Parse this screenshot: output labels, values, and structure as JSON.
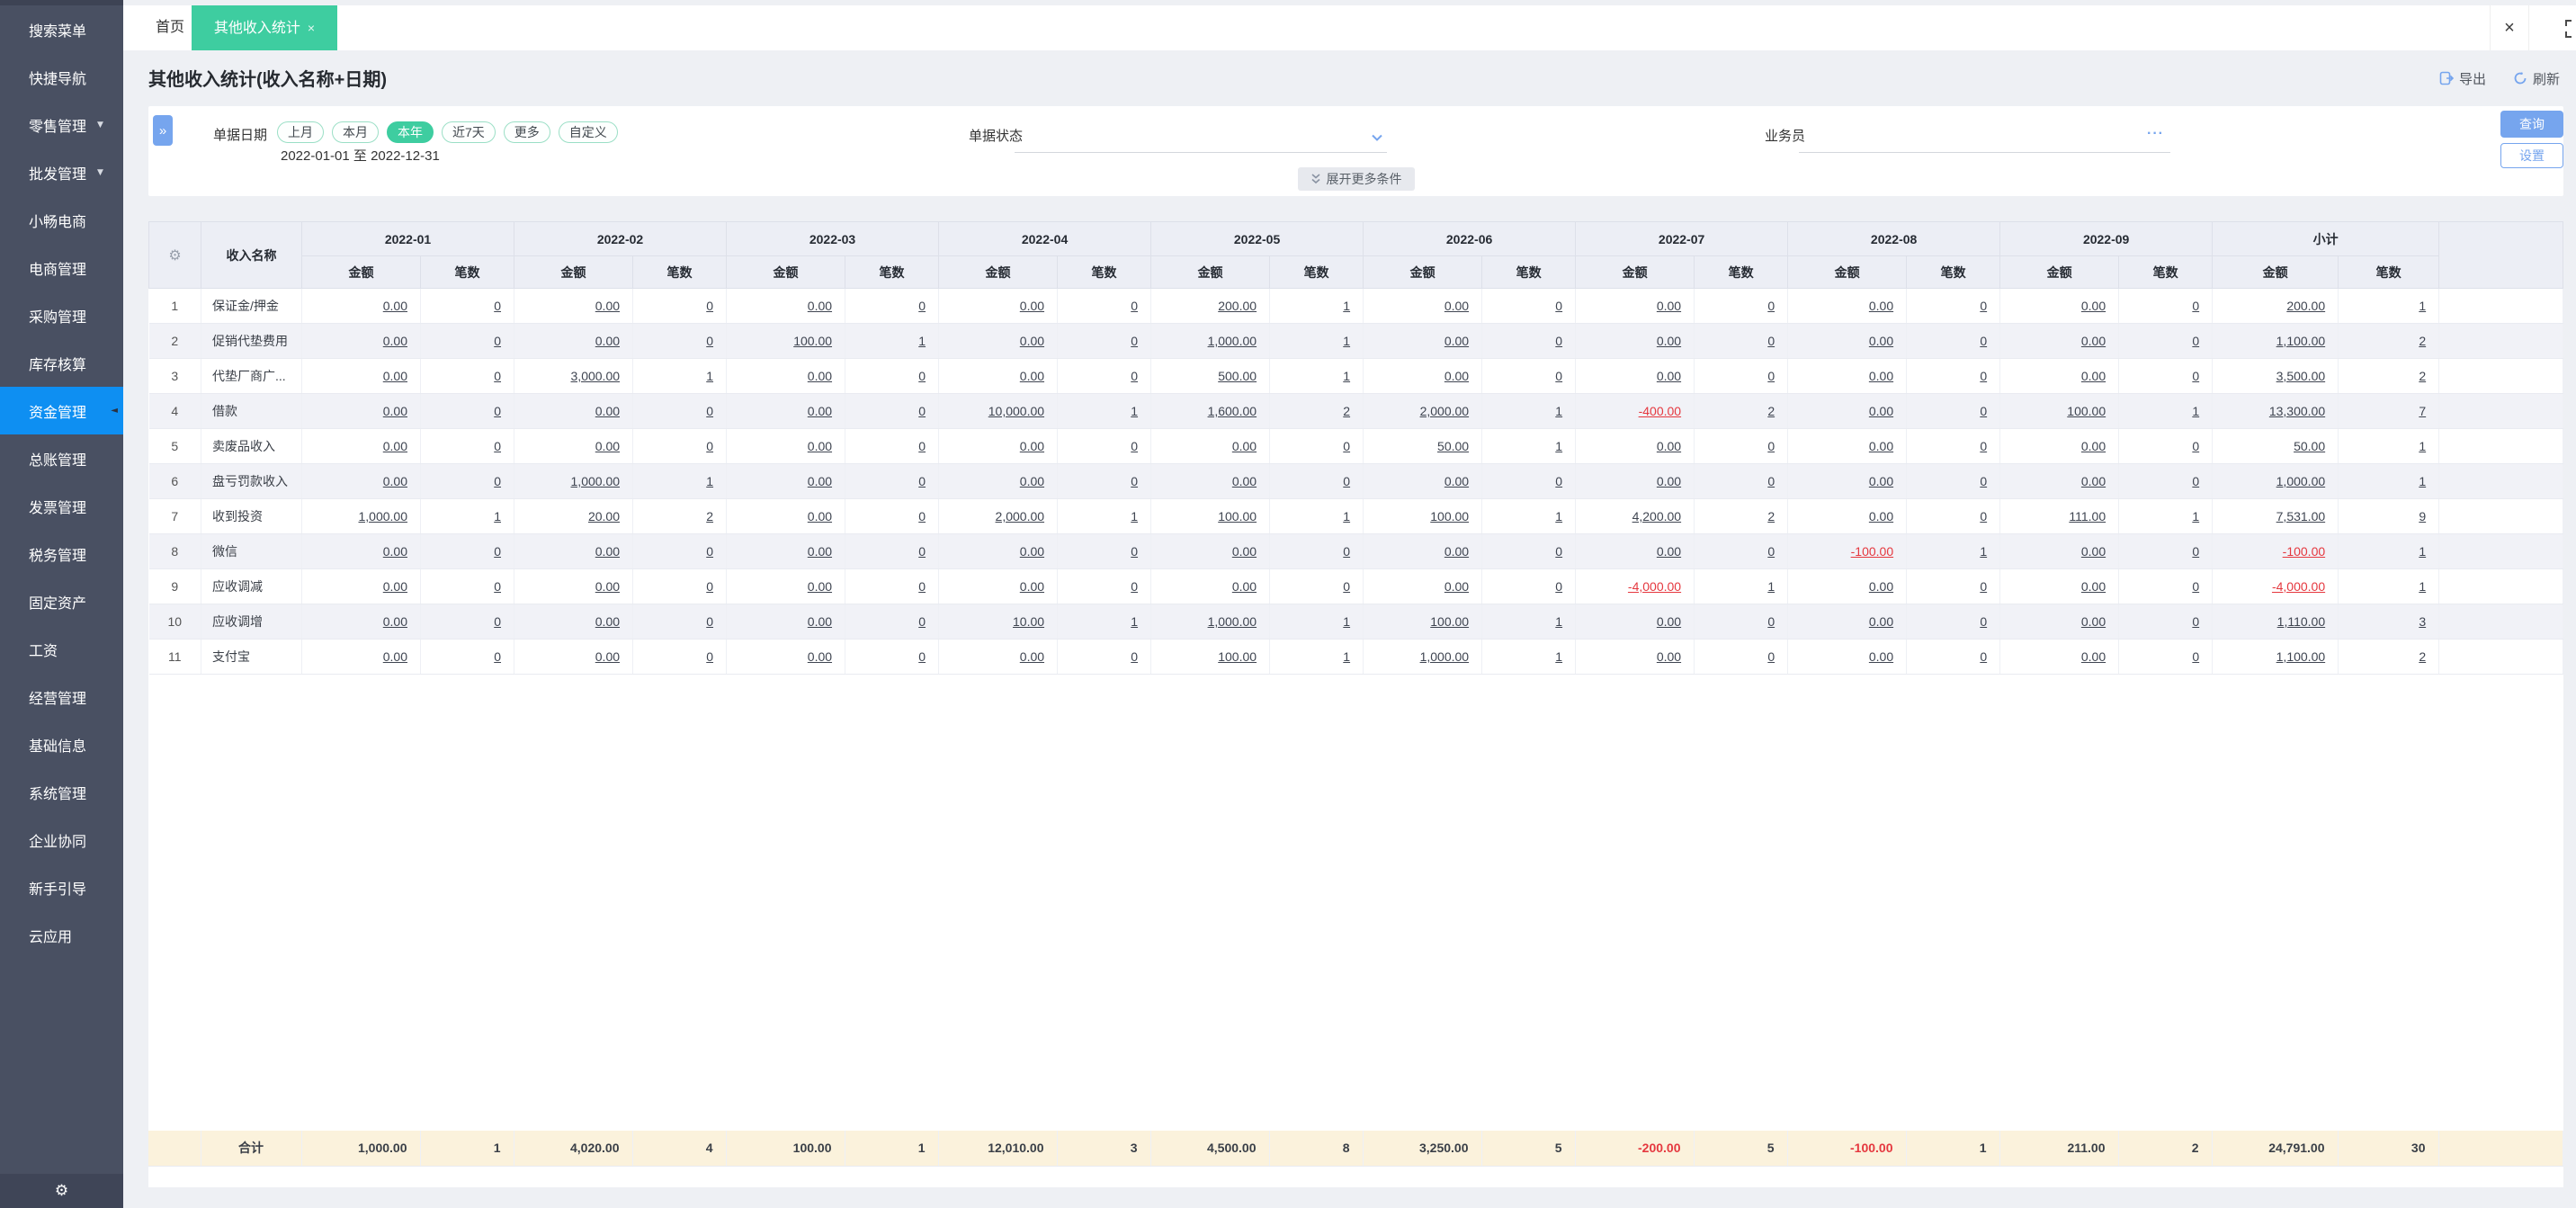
{
  "theme": {
    "accent_green": "#3ecda0",
    "accent_blue": "#76a5ee",
    "sidebar_active_blue": "#0e8ff2",
    "negative_red": "#e5383f",
    "summary_row_bg": "#fbf2dc"
  },
  "icons": {
    "gear_glyph": "⚙",
    "collapse_glyph": "»",
    "close_glyph": "×",
    "caret_glyph": "▼",
    "active_pointer_glyph": "◄",
    "ellipsis_glyph": "···"
  },
  "sidebar": {
    "items": [
      {
        "label": "搜索菜单"
      },
      {
        "label": "快捷导航"
      },
      {
        "label": "零售管理",
        "caret": true
      },
      {
        "label": "批发管理",
        "caret": true
      },
      {
        "label": "小畅电商"
      },
      {
        "label": "电商管理"
      },
      {
        "label": "采购管理"
      },
      {
        "label": "库存核算"
      },
      {
        "label": "资金管理",
        "active": true
      },
      {
        "label": "总账管理"
      },
      {
        "label": "发票管理"
      },
      {
        "label": "税务管理"
      },
      {
        "label": "固定资产"
      },
      {
        "label": "工资"
      },
      {
        "label": "经营管理"
      },
      {
        "label": "基础信息"
      },
      {
        "label": "系统管理"
      },
      {
        "label": "企业协同"
      },
      {
        "label": "新手引导"
      },
      {
        "label": "云应用"
      }
    ]
  },
  "tabs": {
    "home": "首页",
    "active_tab": "其他收入统计"
  },
  "page": {
    "title": "其他收入统计(收入名称+日期)",
    "export_label": "导出",
    "refresh_label": "刷新"
  },
  "filters": {
    "date_label": "单据日期",
    "date_presets": [
      "上月",
      "本月",
      "本年",
      "近7天",
      "更多",
      "自定义"
    ],
    "date_selected": "本年",
    "date_range": "2022-01-01 至 2022-12-31",
    "status_label": "单据状态",
    "status_value": "",
    "salesman_label": "业务员",
    "salesman_value": "",
    "expand_more_label": "展开更多条件",
    "query_label": "查询",
    "settings_label": "设置"
  },
  "table": {
    "name_header": "收入名称",
    "amount_header": "金额",
    "count_header": "笔数",
    "months": [
      "2022-01",
      "2022-02",
      "2022-03",
      "2022-04",
      "2022-05",
      "2022-06",
      "2022-07",
      "2022-08",
      "2022-09",
      "小计"
    ],
    "rows": [
      {
        "index": "1",
        "name": "保证金/押金",
        "values": [
          [
            "0.00",
            "0"
          ],
          [
            "0.00",
            "0"
          ],
          [
            "0.00",
            "0"
          ],
          [
            "0.00",
            "0"
          ],
          [
            "200.00",
            "1"
          ],
          [
            "0.00",
            "0"
          ],
          [
            "0.00",
            "0"
          ],
          [
            "0.00",
            "0"
          ],
          [
            "0.00",
            "0"
          ],
          [
            "200.00",
            "1"
          ]
        ]
      },
      {
        "index": "2",
        "name": "促销代垫费用",
        "values": [
          [
            "0.00",
            "0"
          ],
          [
            "0.00",
            "0"
          ],
          [
            "100.00",
            "1"
          ],
          [
            "0.00",
            "0"
          ],
          [
            "1,000.00",
            "1"
          ],
          [
            "0.00",
            "0"
          ],
          [
            "0.00",
            "0"
          ],
          [
            "0.00",
            "0"
          ],
          [
            "0.00",
            "0"
          ],
          [
            "1,100.00",
            "2"
          ]
        ]
      },
      {
        "index": "3",
        "name": "代垫厂商广...",
        "values": [
          [
            "0.00",
            "0"
          ],
          [
            "3,000.00",
            "1"
          ],
          [
            "0.00",
            "0"
          ],
          [
            "0.00",
            "0"
          ],
          [
            "500.00",
            "1"
          ],
          [
            "0.00",
            "0"
          ],
          [
            "0.00",
            "0"
          ],
          [
            "0.00",
            "0"
          ],
          [
            "0.00",
            "0"
          ],
          [
            "3,500.00",
            "2"
          ]
        ]
      },
      {
        "index": "4",
        "name": "借款",
        "values": [
          [
            "0.00",
            "0"
          ],
          [
            "0.00",
            "0"
          ],
          [
            "0.00",
            "0"
          ],
          [
            "10,000.00",
            "1"
          ],
          [
            "1,600.00",
            "2"
          ],
          [
            "2,000.00",
            "1"
          ],
          [
            "-400.00",
            "2"
          ],
          [
            "0.00",
            "0"
          ],
          [
            "100.00",
            "1"
          ],
          [
            "13,300.00",
            "7"
          ]
        ]
      },
      {
        "index": "5",
        "name": "卖废品收入",
        "values": [
          [
            "0.00",
            "0"
          ],
          [
            "0.00",
            "0"
          ],
          [
            "0.00",
            "0"
          ],
          [
            "0.00",
            "0"
          ],
          [
            "0.00",
            "0"
          ],
          [
            "50.00",
            "1"
          ],
          [
            "0.00",
            "0"
          ],
          [
            "0.00",
            "0"
          ],
          [
            "0.00",
            "0"
          ],
          [
            "50.00",
            "1"
          ]
        ]
      },
      {
        "index": "6",
        "name": "盘亏罚款收入",
        "values": [
          [
            "0.00",
            "0"
          ],
          [
            "1,000.00",
            "1"
          ],
          [
            "0.00",
            "0"
          ],
          [
            "0.00",
            "0"
          ],
          [
            "0.00",
            "0"
          ],
          [
            "0.00",
            "0"
          ],
          [
            "0.00",
            "0"
          ],
          [
            "0.00",
            "0"
          ],
          [
            "0.00",
            "0"
          ],
          [
            "1,000.00",
            "1"
          ]
        ]
      },
      {
        "index": "7",
        "name": "收到投资",
        "values": [
          [
            "1,000.00",
            "1"
          ],
          [
            "20.00",
            "2"
          ],
          [
            "0.00",
            "0"
          ],
          [
            "2,000.00",
            "1"
          ],
          [
            "100.00",
            "1"
          ],
          [
            "100.00",
            "1"
          ],
          [
            "4,200.00",
            "2"
          ],
          [
            "0.00",
            "0"
          ],
          [
            "111.00",
            "1"
          ],
          [
            "7,531.00",
            "9"
          ]
        ]
      },
      {
        "index": "8",
        "name": "微信",
        "values": [
          [
            "0.00",
            "0"
          ],
          [
            "0.00",
            "0"
          ],
          [
            "0.00",
            "0"
          ],
          [
            "0.00",
            "0"
          ],
          [
            "0.00",
            "0"
          ],
          [
            "0.00",
            "0"
          ],
          [
            "0.00",
            "0"
          ],
          [
            "-100.00",
            "1"
          ],
          [
            "0.00",
            "0"
          ],
          [
            "-100.00",
            "1"
          ]
        ]
      },
      {
        "index": "9",
        "name": "应收调减",
        "values": [
          [
            "0.00",
            "0"
          ],
          [
            "0.00",
            "0"
          ],
          [
            "0.00",
            "0"
          ],
          [
            "0.00",
            "0"
          ],
          [
            "0.00",
            "0"
          ],
          [
            "0.00",
            "0"
          ],
          [
            "-4,000.00",
            "1"
          ],
          [
            "0.00",
            "0"
          ],
          [
            "0.00",
            "0"
          ],
          [
            "-4,000.00",
            "1"
          ]
        ]
      },
      {
        "index": "10",
        "name": "应收调增",
        "values": [
          [
            "0.00",
            "0"
          ],
          [
            "0.00",
            "0"
          ],
          [
            "0.00",
            "0"
          ],
          [
            "10.00",
            "1"
          ],
          [
            "1,000.00",
            "1"
          ],
          [
            "100.00",
            "1"
          ],
          [
            "0.00",
            "0"
          ],
          [
            "0.00",
            "0"
          ],
          [
            "0.00",
            "0"
          ],
          [
            "1,110.00",
            "3"
          ]
        ]
      },
      {
        "index": "11",
        "name": "支付宝",
        "values": [
          [
            "0.00",
            "0"
          ],
          [
            "0.00",
            "0"
          ],
          [
            "0.00",
            "0"
          ],
          [
            "0.00",
            "0"
          ],
          [
            "100.00",
            "1"
          ],
          [
            "1,000.00",
            "1"
          ],
          [
            "0.00",
            "0"
          ],
          [
            "0.00",
            "0"
          ],
          [
            "0.00",
            "0"
          ],
          [
            "1,100.00",
            "2"
          ]
        ]
      }
    ],
    "summary": {
      "label": "合计",
      "values": [
        "1,000.00",
        "1",
        "4,020.00",
        "4",
        "100.00",
        "1",
        "12,010.00",
        "3",
        "4,500.00",
        "8",
        "3,250.00",
        "5",
        "-200.00",
        "5",
        "-100.00",
        "1",
        "211.00",
        "2",
        "24,791.00",
        "30"
      ]
    }
  }
}
